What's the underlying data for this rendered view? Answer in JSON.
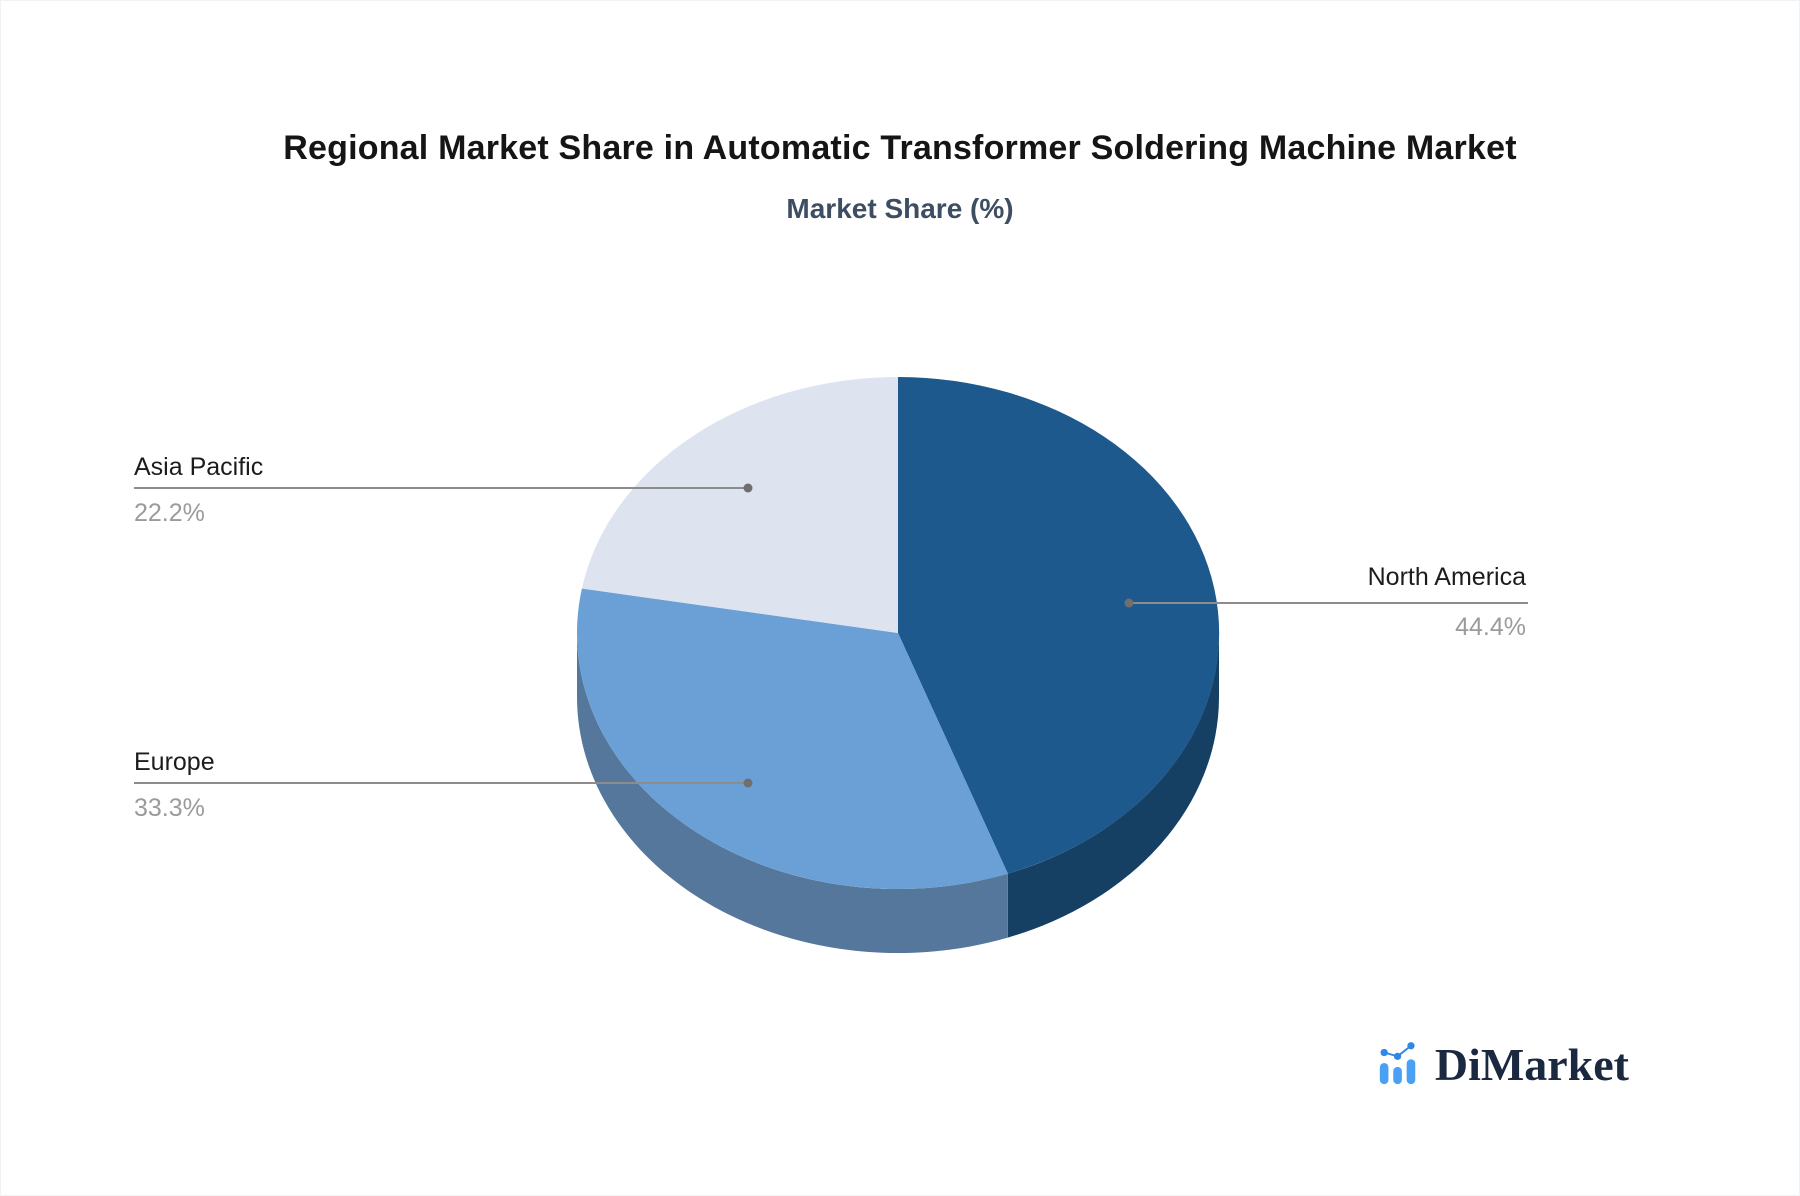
{
  "header": {
    "title": "Regional Market Share in Automatic Transformer Soldering Machine Market",
    "subtitle": "Market Share (%)"
  },
  "chart_data": {
    "type": "pie",
    "title": "Regional Market Share in Automatic Transformer Soldering Machine Market",
    "subtitle": "Market Share (%)",
    "unit": "%",
    "effect": "3d",
    "direction": "clockwise",
    "start_position": "top",
    "legend_position": "none",
    "label_style": "callout-leader-lines",
    "slices": [
      {
        "label": "North America",
        "value": 44.4,
        "display": "44.4%",
        "color": "#1d598c",
        "side_color": "#153f63"
      },
      {
        "label": "Europe",
        "value": 33.3,
        "display": "33.3%",
        "color": "#6aa0d6",
        "side_color": "#55779b"
      },
      {
        "label": "Asia Pacific",
        "value": 22.2,
        "display": "22.2%",
        "color": "#dde4ef",
        "side_color": "#b9c4d6"
      }
    ],
    "leader_line_color": "#8c8c8c",
    "leader_dot_color": "#6f6f6f",
    "label_name_color": "#1c1c1c",
    "label_value_color": "#9b9b9b"
  },
  "branding": {
    "logo_text": "DiMarket",
    "logo_icon": "bar-line-growth-icon",
    "logo_text_color": "#1b2940",
    "logo_bar_color": "#4aa0f2",
    "logo_dot_color": "#2f87e8"
  }
}
